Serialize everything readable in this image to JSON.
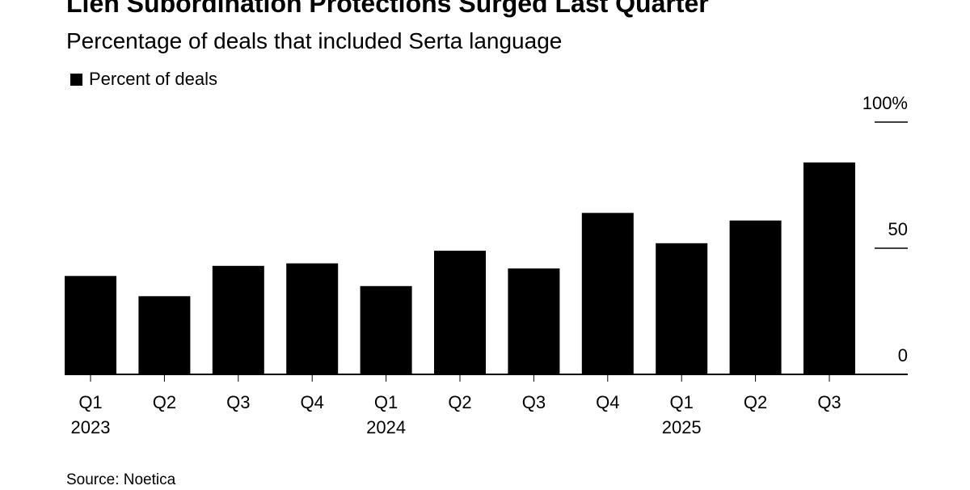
{
  "chart_data": {
    "type": "bar",
    "title": "Lien Subordination Protections Surged Last Quarter",
    "subtitle": "Percentage of deals that included Serta language",
    "legend": [
      "Percent of deals"
    ],
    "categories": [
      "Q1 2023",
      "Q2 2023",
      "Q3 2023",
      "Q4 2023",
      "Q1 2024",
      "Q2 2024",
      "Q3 2024",
      "Q4 2024",
      "Q1 2025",
      "Q2 2025",
      "Q3 2025"
    ],
    "x_tick_labels": [
      {
        "quarter": "Q1",
        "year": "2023"
      },
      {
        "quarter": "Q2",
        "year": ""
      },
      {
        "quarter": "Q3",
        "year": ""
      },
      {
        "quarter": "Q4",
        "year": ""
      },
      {
        "quarter": "Q1",
        "year": "2024"
      },
      {
        "quarter": "Q2",
        "year": ""
      },
      {
        "quarter": "Q3",
        "year": ""
      },
      {
        "quarter": "Q4",
        "year": ""
      },
      {
        "quarter": "Q1",
        "year": "2025"
      },
      {
        "quarter": "Q2",
        "year": ""
      },
      {
        "quarter": "Q3",
        "year": ""
      }
    ],
    "series": [
      {
        "name": "Percent of deals",
        "values": [
          39,
          31,
          43,
          44,
          35,
          49,
          42,
          64,
          52,
          61,
          84
        ]
      }
    ],
    "y_ticks": [
      {
        "value": 0,
        "label": "0"
      },
      {
        "value": 50,
        "label": "50"
      },
      {
        "value": 100,
        "label": "100%"
      }
    ],
    "ylim": [
      0,
      100
    ],
    "xlabel": "",
    "ylabel": "",
    "legend_position": "top-left",
    "y_axis_side": "right",
    "grid": false,
    "bar_color": "#000000"
  },
  "source": "Source: Noetica"
}
